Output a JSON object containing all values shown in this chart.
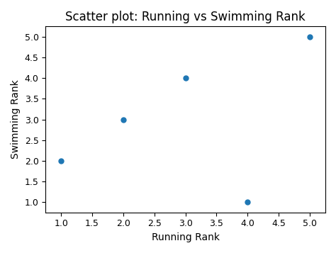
{
  "title": "Scatter plot: Running vs Swimming Rank",
  "xlabel": "Running Rank",
  "ylabel": "Swimming Rank",
  "x": [
    1,
    2,
    3,
    4,
    5
  ],
  "y": [
    2,
    3,
    4,
    1,
    5
  ],
  "dot_color": "#1f77b4",
  "dot_size": 25,
  "xlim": [
    0.75,
    5.25
  ],
  "ylim": [
    0.75,
    5.25
  ],
  "xticks": [
    1.0,
    1.5,
    2.0,
    2.5,
    3.0,
    3.5,
    4.0,
    4.5,
    5.0
  ],
  "yticks": [
    1.0,
    1.5,
    2.0,
    2.5,
    3.0,
    3.5,
    4.0,
    4.5,
    5.0
  ],
  "title_fontsize": 12,
  "label_fontsize": 10,
  "tick_fontsize": 9
}
